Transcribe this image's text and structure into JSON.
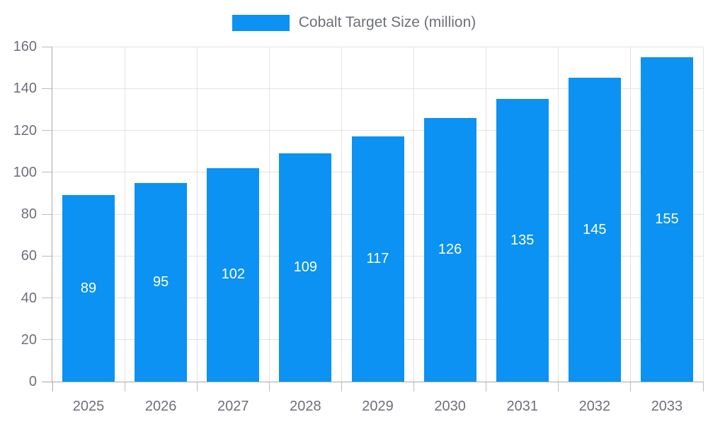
{
  "legend": {
    "label": "Cobalt Target Size (million)"
  },
  "chart_data": {
    "type": "bar",
    "title": "Cobalt Target Size (million)",
    "series": [
      {
        "name": "Cobalt Target Size (million)",
        "values": [
          89,
          95,
          102,
          109,
          117,
          126,
          135,
          145,
          155
        ]
      }
    ],
    "categories": [
      "2025",
      "2026",
      "2027",
      "2028",
      "2029",
      "2030",
      "2031",
      "2032",
      "2033"
    ],
    "xlabel": "",
    "ylabel": "",
    "ylim": [
      0,
      160
    ],
    "yticks": [
      0,
      20,
      40,
      60,
      80,
      100,
      120,
      140,
      160
    ],
    "grid": true,
    "legend_position": "top-center",
    "value_labels": "inside-center"
  },
  "colors": {
    "bar": "#0B92F2",
    "value_label": "#ffffff",
    "axis_label": "#6e7079",
    "legend_text": "#6e7079",
    "grid_line": "#e3e3e3",
    "axis_line": "#aaaaaa",
    "tick_line": "#bcbcbc",
    "background": "#ffffff"
  }
}
